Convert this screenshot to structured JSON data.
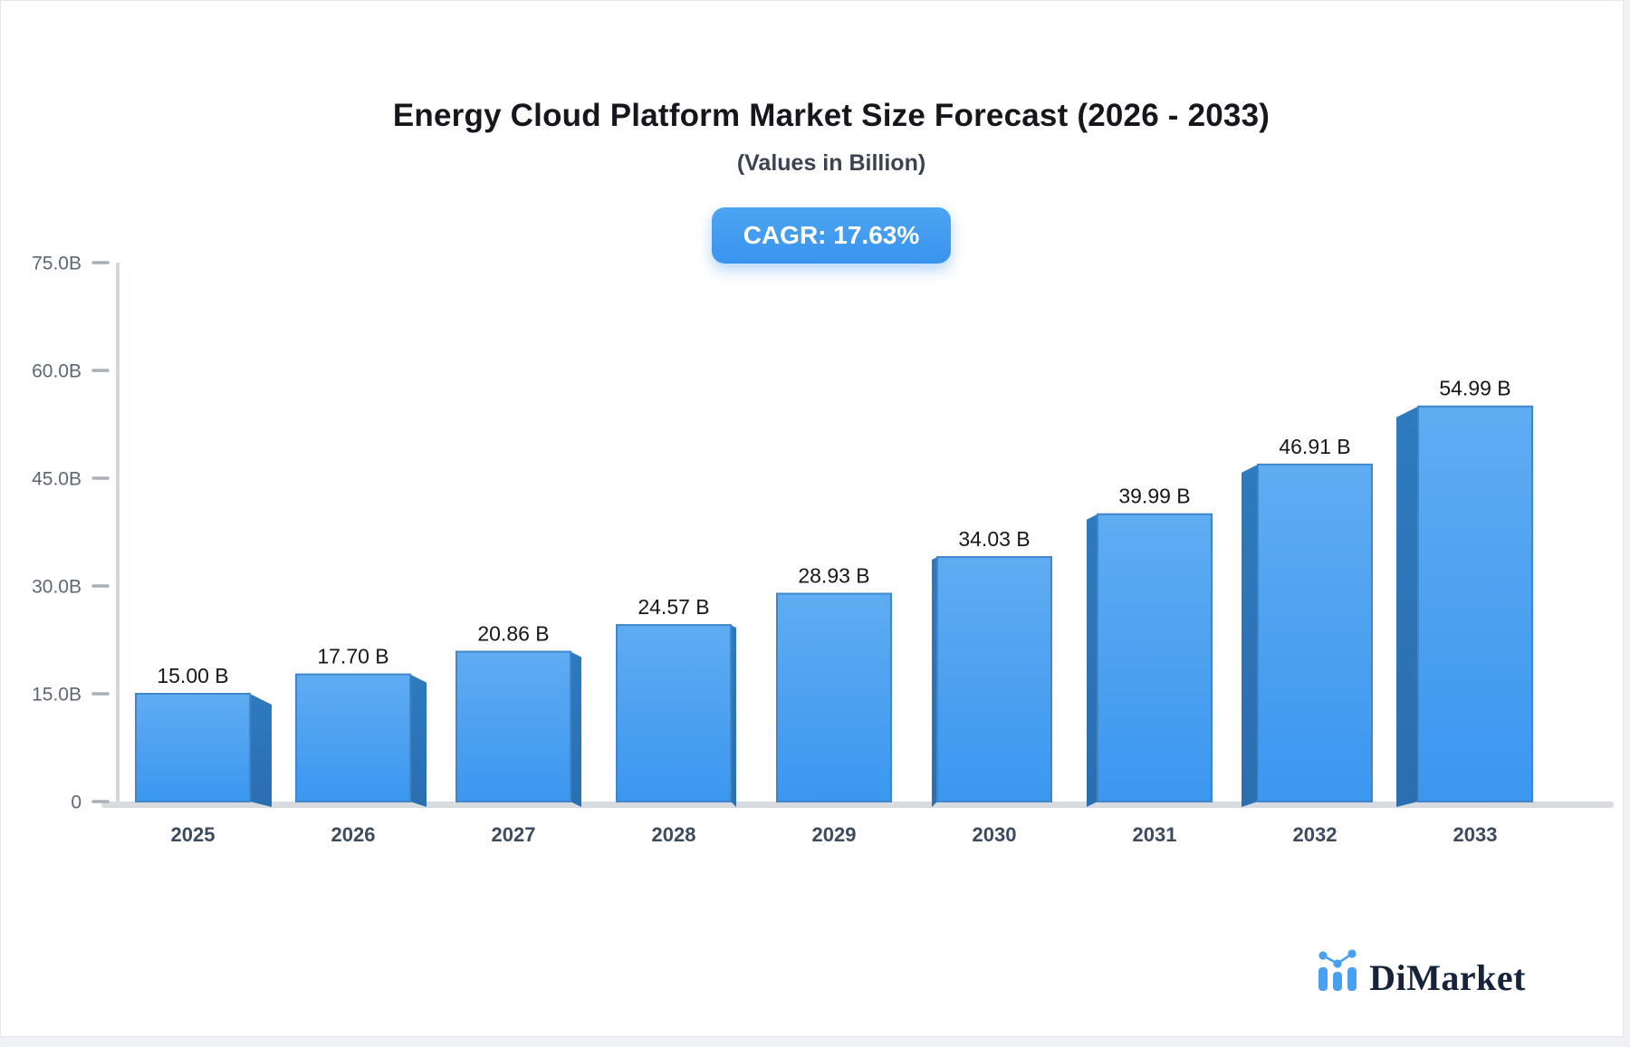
{
  "header": {
    "title": "Energy Cloud Platform Market Size Forecast (2026 - 2033)",
    "subtitle": "(Values in Billion)",
    "cagr_label": "CAGR: 17.63%"
  },
  "chart_data": {
    "type": "bar",
    "title": "Energy Cloud Platform Market Size Forecast (2026 - 2033)",
    "subtitle": "(Values in Billion)",
    "cagr_percent": 17.63,
    "categories": [
      "2025",
      "2026",
      "2027",
      "2028",
      "2029",
      "2030",
      "2031",
      "2032",
      "2033"
    ],
    "values": [
      15.0,
      17.7,
      20.86,
      24.57,
      28.93,
      34.03,
      39.99,
      46.91,
      54.99
    ],
    "value_labels": [
      "15.00 B",
      "17.70 B",
      "20.86 B",
      "24.57 B",
      "28.93 B",
      "34.03 B",
      "39.99 B",
      "46.91 B",
      "54.99 B"
    ],
    "unit": "Billion",
    "ylim": [
      0,
      75
    ],
    "yticks": [
      {
        "value": 0,
        "label": "0"
      },
      {
        "value": 15,
        "label": "15.0B"
      },
      {
        "value": 30,
        "label": "30.0B"
      },
      {
        "value": 45,
        "label": "45.0B"
      },
      {
        "value": 60,
        "label": "60.0B"
      },
      {
        "value": 75,
        "label": "75.0B"
      }
    ],
    "grid": false,
    "legend": "none",
    "bar_style": "3d-perspective-center"
  },
  "colors": {
    "bar_front_top": "#5FACF2",
    "bar_front_bottom": "#3B97EF",
    "bar_front_stroke": "#4186CB",
    "bar_side_top": "#2E7ABE",
    "bar_side_bottom": "#2A6FB0",
    "baseline": "#D8DBE0",
    "axis_line": "#D3D7DD",
    "tick_dash": "#A9B0BA",
    "ytick_label": "#5D6772",
    "xtick_label": "#3C4C5E",
    "value_label": "#15171A",
    "badge_bg": "#3E9AF0",
    "badge_text": "#FFFFFF",
    "logo_blue": "#4AA0F0",
    "logo_text": "#16243A"
  },
  "logo": {
    "text": "DiMarket",
    "icon": "mini-bar-line-chart-icon"
  }
}
